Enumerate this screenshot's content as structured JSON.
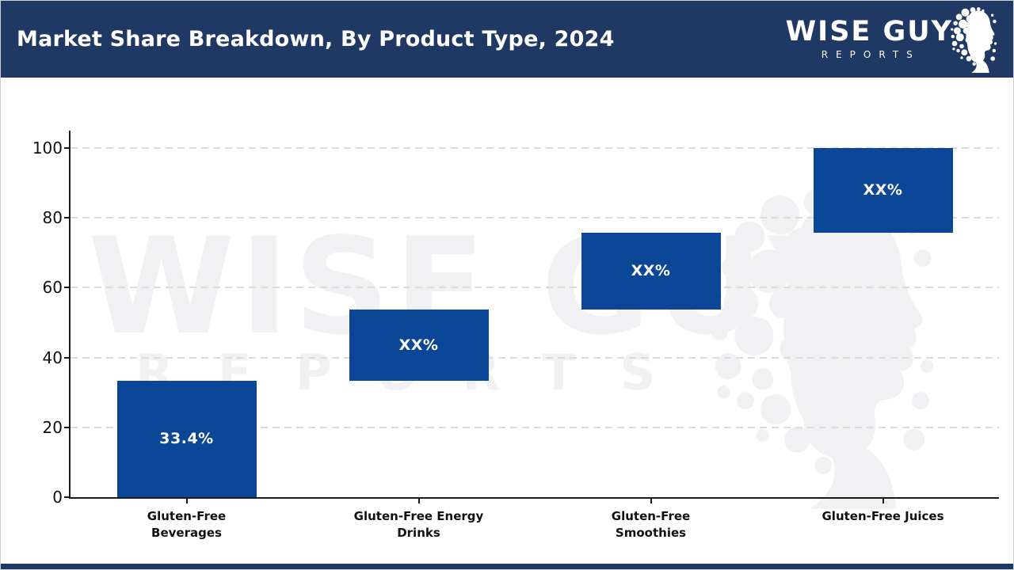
{
  "header": {
    "title": "Market Share Breakdown, By Product Type, 2024",
    "logo": {
      "line1": "WISE GUY",
      "line2": "REPORTS"
    }
  },
  "watermark": {
    "line1": "WISE GUY",
    "line2": "REPORTS"
  },
  "colors": {
    "header_bg": "#1f3864",
    "footer_bg": "#1f3864",
    "bar": "#0b4796",
    "bar_label": "#ffffff",
    "grid": "#dcdcdc",
    "axis": "#1a1a1a",
    "watermark": "#f1f1f3"
  },
  "chart_data": {
    "type": "bar",
    "subtype": "floating-waterfall",
    "title": "Market Share Breakdown, By Product Type, 2024",
    "categories": [
      "Gluten-Free Beverages",
      "Gluten-Free Energy Drinks",
      "Gluten-Free Smoothies",
      "Gluten-Free Juices"
    ],
    "category_lines": [
      [
        "Gluten-Free",
        "Beverages"
      ],
      [
        "Gluten-Free Energy",
        "Drinks"
      ],
      [
        "Gluten-Free",
        "Smoothies"
      ],
      [
        "Gluten-Free Juices"
      ]
    ],
    "segments": [
      {
        "start": 0,
        "end": 33.4,
        "label": "33.4%"
      },
      {
        "start": 33.4,
        "end": 53.8,
        "label": "XX%"
      },
      {
        "start": 53.8,
        "end": 75.8,
        "label": "XX%"
      },
      {
        "start": 75.8,
        "end": 100,
        "label": "XX%"
      }
    ],
    "ylim": [
      0,
      100
    ],
    "yticks": [
      0,
      20,
      40,
      60,
      80,
      100
    ],
    "grid": "horizontal-dashed",
    "legend": "none",
    "bar_color": "#0b4796",
    "value_label_color": "#ffffff"
  }
}
